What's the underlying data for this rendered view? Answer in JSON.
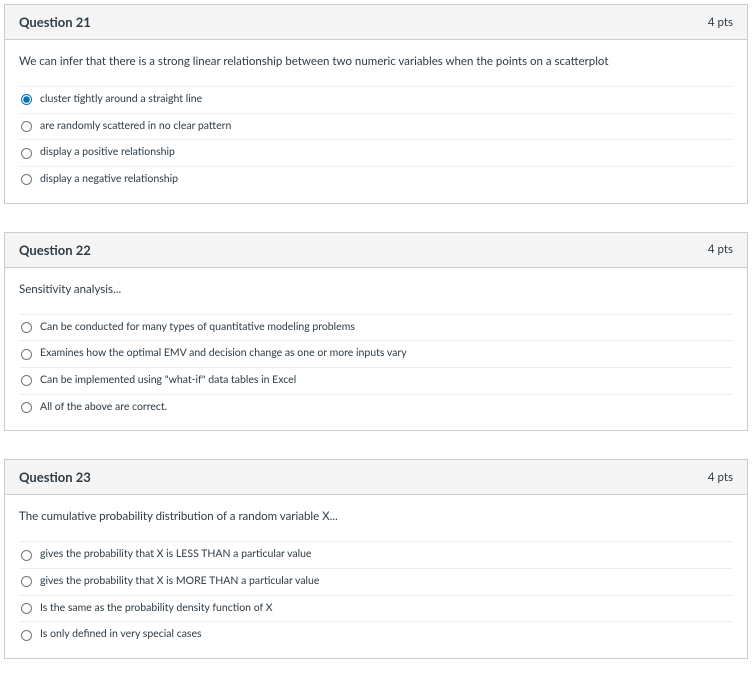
{
  "questions": [
    {
      "title": "Question 21",
      "points": "4 pts",
      "prompt": "We can infer that there is a strong linear relationship between two numeric variables when the points on a scatterplot",
      "selected_index": 0,
      "options": [
        "cluster tightly around a straight line",
        "are randomly scattered in no clear pattern",
        "display a positive relationship",
        "display a negative relationship"
      ]
    },
    {
      "title": "Question 22",
      "points": "4 pts",
      "prompt": "Sensitivity analysis...",
      "selected_index": -1,
      "options": [
        "Can be conducted for many types of quantitative modeling problems",
        "Examines how the optimal EMV and decision change as one or more inputs vary",
        "Can be implemented using \"what-if\" data tables in Excel",
        "All of the above are correct."
      ]
    },
    {
      "title": "Question 23",
      "points": "4 pts",
      "prompt": "The cumulative probability distribution of a random variable X...",
      "selected_index": -1,
      "options": [
        "gives the probability that X is LESS THAN a particular value",
        "gives the probability that X is MORE THAN a particular value",
        "Is the same as the probability density function of X",
        "Is only defined in very special cases"
      ]
    }
  ],
  "colors": {
    "border": "#c7cdd1",
    "header_bg": "#f5f5f5",
    "text": "#2d3b45",
    "option_divider": "#eeeeee",
    "radio_accent": "#0374b5",
    "background": "#ffffff"
  }
}
